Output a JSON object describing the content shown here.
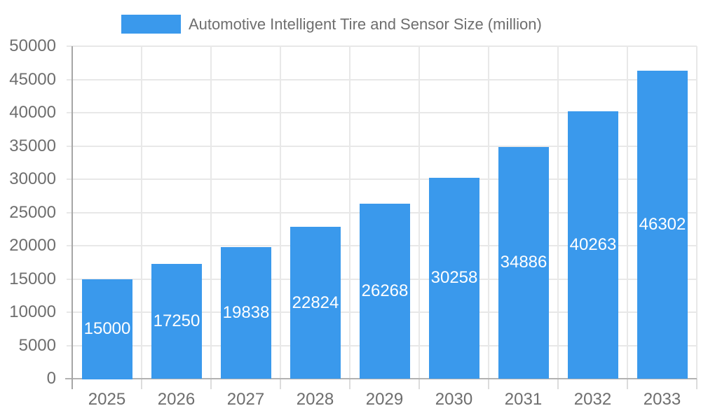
{
  "chart_data": {
    "type": "bar",
    "title": "Automotive Intelligent Tire and Sensor Size (million)",
    "legend_entries": [
      "Automotive Intelligent Tire and Sensor Size (million)"
    ],
    "legend_position": "top",
    "categories": [
      "2025",
      "2026",
      "2027",
      "2028",
      "2029",
      "2030",
      "2031",
      "2032",
      "2033"
    ],
    "values": [
      15000,
      17250,
      19838,
      22824,
      26268,
      30258,
      34886,
      40263,
      46302
    ],
    "xlabel": "",
    "ylabel": "",
    "ylim": [
      0,
      50000
    ],
    "ytick_step": 5000,
    "grid": true,
    "bar_color": "#3a99ec",
    "bar_label_color": "#ffffff",
    "axis_text_color": "#6e6e6e"
  }
}
